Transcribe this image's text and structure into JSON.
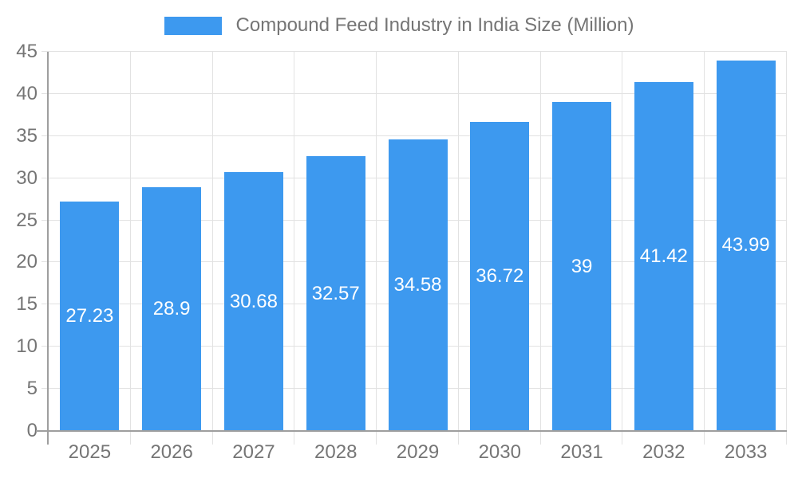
{
  "chart_data": {
    "type": "bar",
    "title": "Compound Feed Industry in India Size (Million)",
    "categories": [
      "2025",
      "2026",
      "2027",
      "2028",
      "2029",
      "2030",
      "2031",
      "2032",
      "2033"
    ],
    "values": [
      27.23,
      28.9,
      30.68,
      32.57,
      34.58,
      36.72,
      39,
      41.42,
      43.99
    ],
    "value_labels": [
      "27.23",
      "28.9",
      "30.68",
      "32.57",
      "34.58",
      "36.72",
      "39",
      "41.42",
      "43.99"
    ],
    "xlabel": "",
    "ylabel": "",
    "ylim": [
      0,
      45
    ],
    "yticks": [
      0,
      5,
      10,
      15,
      20,
      25,
      30,
      35,
      40,
      45
    ],
    "grid": "on",
    "legend_position": "top",
    "colors": {
      "bar": "#3D99EF",
      "bar_label": "#FFFFFF",
      "axis_line": "#9E9E9E",
      "gridline": "#E2E2E2",
      "tick_text": "#757575"
    }
  }
}
